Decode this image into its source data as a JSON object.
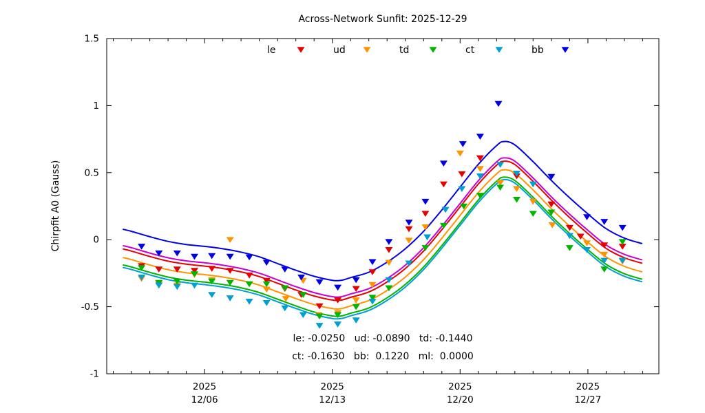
{
  "title": "Across-Network Sunfit: 2025-12-29",
  "ylabel": "Chirpfit A0 (Gauss)",
  "stats": {
    "line1": "le: -0.0250   ud: -0.0890   td: -0.1440",
    "line2": "ct: -0.1630   bb:  0.1220   ml:  0.0000"
  },
  "chart_data": {
    "type": "line",
    "title": "Across-Network Sunfit: 2025-12-29",
    "xlabel": "",
    "ylabel": "Chirpfit A0 (Gauss)",
    "grid": false,
    "legend_position": "top-center-inside",
    "marker_shape": "triangle-down",
    "x_axis": {
      "unit": "days since 2025-12-01",
      "range": [
        -0.36,
        29.89
      ],
      "major_ticks": [
        {
          "day": 5,
          "year": "2025",
          "date": "12/06"
        },
        {
          "day": 12,
          "year": "2025",
          "date": "12/13"
        },
        {
          "day": 19,
          "year": "2025",
          "date": "12/20"
        },
        {
          "day": 26,
          "year": "2025",
          "date": "12/27"
        }
      ],
      "minor_tick_days": [
        0,
        1,
        2,
        3,
        4,
        5,
        6,
        7,
        8,
        9,
        10,
        11,
        12,
        13,
        14,
        15,
        16,
        17,
        18,
        19,
        20,
        21,
        22,
        23,
        24,
        25,
        26,
        27,
        28,
        29
      ]
    },
    "y_axis": {
      "range": [
        -1,
        1.5
      ],
      "ticks": [
        -1,
        -0.5,
        0,
        0.5,
        1,
        1.5
      ],
      "labels": [
        "-1",
        "-0.5",
        "0",
        "0.5",
        "1",
        "1.5"
      ]
    },
    "base_curve": {
      "note": "ml reference curve; every plotted curve = base + series offset",
      "x": [
        0.55,
        1,
        2,
        3,
        4,
        5,
        6,
        7,
        8,
        9,
        10,
        11,
        12,
        12.5,
        13,
        14,
        15,
        16,
        17,
        18,
        19,
        20,
        21,
        21.4,
        22,
        23,
        24,
        25,
        26,
        27,
        28,
        28.95
      ],
      "y": [
        -0.045,
        -0.06,
        -0.1,
        -0.135,
        -0.158,
        -0.172,
        -0.19,
        -0.215,
        -0.25,
        -0.3,
        -0.35,
        -0.395,
        -0.425,
        -0.425,
        -0.405,
        -0.365,
        -0.29,
        -0.19,
        -0.06,
        0.1,
        0.27,
        0.44,
        0.58,
        0.61,
        0.585,
        0.46,
        0.32,
        0.19,
        0.07,
        -0.04,
        -0.11,
        -0.15
      ]
    },
    "series": [
      {
        "id": "le",
        "label": "le",
        "color": "#e60000",
        "offset": -0.025,
        "in_legend": true,
        "points": [
          [
            1.55,
            -0.195
          ],
          [
            2.5,
            -0.22
          ],
          [
            3.5,
            -0.22
          ],
          [
            4.45,
            -0.23
          ],
          [
            5.4,
            -0.215
          ],
          [
            6.4,
            -0.23
          ],
          [
            7.45,
            -0.265
          ],
          [
            8.4,
            -0.305
          ],
          [
            9.4,
            -0.365
          ],
          [
            10.3,
            -0.41
          ],
          [
            11.3,
            -0.495
          ],
          [
            12.3,
            -0.45
          ],
          [
            13.3,
            -0.365
          ],
          [
            14.2,
            -0.24
          ],
          [
            15.1,
            -0.075
          ],
          [
            16.2,
            0.08
          ],
          [
            17.1,
            0.195
          ],
          [
            18.1,
            0.415
          ],
          [
            19.1,
            0.49
          ],
          [
            20.1,
            0.61
          ],
          [
            22.1,
            0.475
          ],
          [
            24.0,
            0.265
          ],
          [
            25.0,
            0.09
          ],
          [
            25.6,
            0.025
          ],
          [
            26.9,
            -0.04
          ],
          [
            27.9,
            -0.05
          ]
        ]
      },
      {
        "id": "ud",
        "label": "ud",
        "color": "#ff9400",
        "offset": -0.089,
        "in_legend": true,
        "points": [
          [
            1.55,
            -0.29
          ],
          [
            2.5,
            -0.33
          ],
          [
            3.5,
            -0.34
          ],
          [
            4.45,
            -0.26
          ],
          [
            5.4,
            -0.3
          ],
          [
            6.4,
            0.0
          ],
          [
            7.45,
            -0.33
          ],
          [
            8.4,
            -0.37
          ],
          [
            9.45,
            -0.44
          ],
          [
            10.4,
            -0.305
          ],
          [
            11.25,
            -0.56
          ],
          [
            12.3,
            -0.545
          ],
          [
            13.3,
            -0.45
          ],
          [
            14.2,
            -0.335
          ],
          [
            15.1,
            -0.17
          ],
          [
            16.2,
            -0.005
          ],
          [
            17.1,
            0.095
          ],
          [
            19.0,
            0.645
          ],
          [
            20.1,
            0.53
          ],
          [
            21.2,
            0.425
          ],
          [
            22.1,
            0.38
          ],
          [
            23.0,
            0.285
          ],
          [
            24.05,
            0.11
          ],
          [
            25.95,
            -0.025
          ],
          [
            26.9,
            -0.11
          ],
          [
            27.9,
            -0.16
          ]
        ]
      },
      {
        "id": "td",
        "label": "td",
        "color": "#00b400",
        "offset": -0.144,
        "in_legend": true,
        "points": [
          [
            1.55,
            -0.21
          ],
          [
            2.5,
            -0.32
          ],
          [
            3.5,
            -0.31
          ],
          [
            4.45,
            -0.255
          ],
          [
            5.4,
            -0.31
          ],
          [
            6.4,
            -0.32
          ],
          [
            7.45,
            -0.33
          ],
          [
            8.4,
            -0.33
          ],
          [
            9.4,
            -0.36
          ],
          [
            10.4,
            -0.41
          ],
          [
            11.3,
            -0.57
          ],
          [
            12.3,
            -0.56
          ],
          [
            13.3,
            -0.5
          ],
          [
            14.2,
            -0.43
          ],
          [
            15.1,
            -0.36
          ],
          [
            17.1,
            -0.06
          ],
          [
            18.1,
            0.105
          ],
          [
            19.2,
            0.25
          ],
          [
            20.1,
            0.33
          ],
          [
            21.2,
            0.39
          ],
          [
            22.1,
            0.3
          ],
          [
            23.0,
            0.195
          ],
          [
            24.0,
            0.205
          ],
          [
            25.0,
            -0.06
          ],
          [
            26.9,
            -0.22
          ],
          [
            27.9,
            -0.015
          ]
        ]
      },
      {
        "id": "ct",
        "label": "ct",
        "color": "#00a0d0",
        "offset": -0.163,
        "in_legend": true,
        "points": [
          [
            1.55,
            -0.28
          ],
          [
            2.5,
            -0.34
          ],
          [
            3.5,
            -0.35
          ],
          [
            4.45,
            -0.34
          ],
          [
            5.4,
            -0.41
          ],
          [
            6.4,
            -0.435
          ],
          [
            7.45,
            -0.46
          ],
          [
            8.4,
            -0.47
          ],
          [
            9.4,
            -0.51
          ],
          [
            10.4,
            -0.56
          ],
          [
            11.3,
            -0.64
          ],
          [
            12.3,
            -0.63
          ],
          [
            13.3,
            -0.6
          ],
          [
            14.2,
            -0.46
          ],
          [
            15.1,
            -0.3
          ],
          [
            16.2,
            -0.175
          ],
          [
            17.2,
            0.02
          ],
          [
            18.2,
            0.225
          ],
          [
            19.1,
            0.38
          ],
          [
            20.1,
            0.475
          ],
          [
            21.2,
            0.56
          ],
          [
            22.1,
            0.495
          ],
          [
            23.0,
            0.415
          ],
          [
            25.0,
            0.03
          ],
          [
            25.95,
            -0.075
          ],
          [
            26.9,
            -0.155
          ],
          [
            27.9,
            -0.155
          ]
        ]
      },
      {
        "id": "bb",
        "label": "bb",
        "color": "#0000e6",
        "offset": 0.122,
        "in_legend": true,
        "points": [
          [
            1.55,
            -0.05
          ],
          [
            2.5,
            -0.1
          ],
          [
            3.5,
            -0.1
          ],
          [
            4.45,
            -0.125
          ],
          [
            5.4,
            -0.12
          ],
          [
            6.4,
            -0.125
          ],
          [
            7.45,
            -0.13
          ],
          [
            8.4,
            -0.17
          ],
          [
            9.4,
            -0.22
          ],
          [
            10.3,
            -0.28
          ],
          [
            11.3,
            -0.315
          ],
          [
            12.3,
            -0.355
          ],
          [
            13.3,
            -0.3
          ],
          [
            14.2,
            -0.165
          ],
          [
            15.1,
            -0.015
          ],
          [
            16.2,
            0.13
          ],
          [
            17.1,
            0.285
          ],
          [
            18.1,
            0.57
          ],
          [
            19.15,
            0.715
          ],
          [
            20.1,
            0.77
          ],
          [
            21.1,
            1.015
          ],
          [
            24.0,
            0.47
          ],
          [
            25.95,
            0.17
          ],
          [
            26.9,
            0.135
          ],
          [
            27.9,
            0.09
          ]
        ]
      },
      {
        "id": "ml",
        "label": "ml",
        "color": "#cc00cc",
        "offset": 0.0,
        "in_legend": false,
        "points": []
      }
    ],
    "fit_offsets": {
      "le": -0.025,
      "ud": -0.089,
      "td": -0.144,
      "ct": -0.163,
      "bb": 0.122,
      "ml": 0.0
    }
  }
}
